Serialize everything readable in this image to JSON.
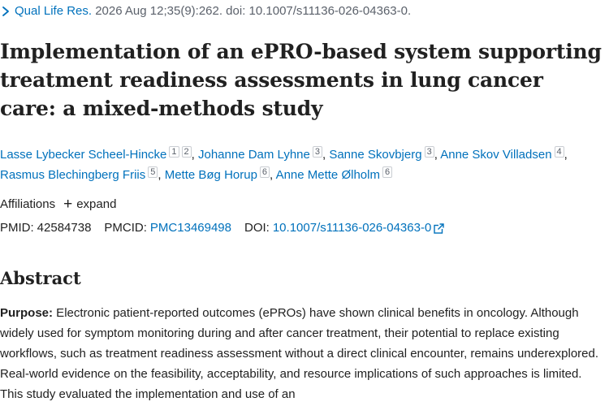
{
  "citation": {
    "journal": "Qual Life Res.",
    "details": "2026 Aug 12;35(9):262. doi: 10.1007/s11136-026-04363-0."
  },
  "title": "Implementation of an ePRO-based system supporting treatment readiness assessments in lung cancer care: a mixed-methods study",
  "authors": [
    {
      "name": "Lasse Lybecker Scheel-Hincke",
      "affils": [
        "1",
        "2"
      ]
    },
    {
      "name": "Johanne Dam Lyhne",
      "affils": [
        "3"
      ]
    },
    {
      "name": "Sanne Skovbjerg",
      "affils": [
        "3"
      ]
    },
    {
      "name": "Anne Skov Villadsen",
      "affils": [
        "4"
      ]
    },
    {
      "name": "Rasmus Blechingberg Friis",
      "affils": [
        "5"
      ]
    },
    {
      "name": "Mette Bøg Horup",
      "affils": [
        "6"
      ]
    },
    {
      "name": "Anne Mette Ølholm",
      "affils": [
        "6"
      ]
    }
  ],
  "affiliations": {
    "label": "Affiliations",
    "expand_label": "expand",
    "expand_icon": "plus-icon"
  },
  "ids": {
    "pmid_label": "PMID:",
    "pmid": "42584738",
    "pmcid_label": "PMCID:",
    "pmcid": "PMC13469498",
    "doi_label": "DOI:",
    "doi": "10.1007/s11136-026-04363-0"
  },
  "abstract": {
    "heading": "Abstract",
    "purpose_label": "Purpose:",
    "purpose_text": " Electronic patient-reported outcomes (ePROs) have shown clinical benefits in oncology. Although widely used for symptom monitoring during and after cancer treatment, their potential to replace existing workflows, such as treatment readiness assessment without a direct clinical encounter, remains underexplored. Real-world evidence on the feasibility, acceptability, and resource implications of such approaches is limited. This study evaluated the implementation and use of an"
  },
  "colors": {
    "link": "#0071bc",
    "text": "#212121",
    "muted": "#5b616b"
  }
}
